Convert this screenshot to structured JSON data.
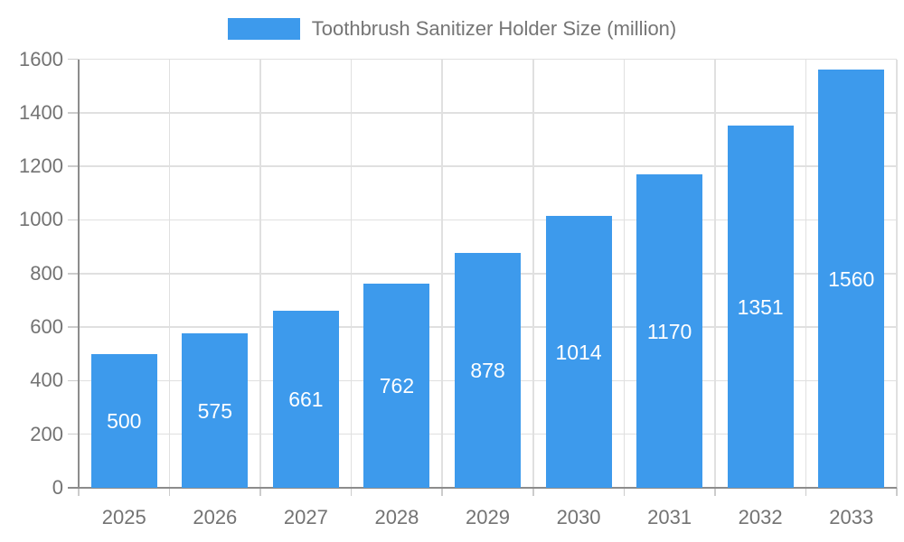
{
  "chart_data": {
    "type": "bar",
    "title": "Toothbrush Sanitizer Holder Size (million)",
    "categories": [
      "2025",
      "2026",
      "2027",
      "2028",
      "2029",
      "2030",
      "2031",
      "2032",
      "2033"
    ],
    "values": [
      500,
      575,
      661,
      762,
      878,
      1014,
      1170,
      1351,
      1560
    ],
    "xlabel": "",
    "ylabel": "",
    "ylim": [
      0,
      1600
    ],
    "ytick_step": 200,
    "ytick_labels": [
      "0",
      "200",
      "400",
      "600",
      "800",
      "1000",
      "1200",
      "1400",
      "1600"
    ],
    "grid": true,
    "legend_position": "top-center",
    "bar_labels_inside": true
  },
  "colors": {
    "bar": "#3D9AEC",
    "bar_value_text": "#ffffff",
    "axis_line": "#8c8c8c",
    "gridline": "#e0e0e0",
    "tick": "#cccccc",
    "axis_text": "#737373",
    "legend_text": "#757575",
    "background": "#ffffff"
  }
}
